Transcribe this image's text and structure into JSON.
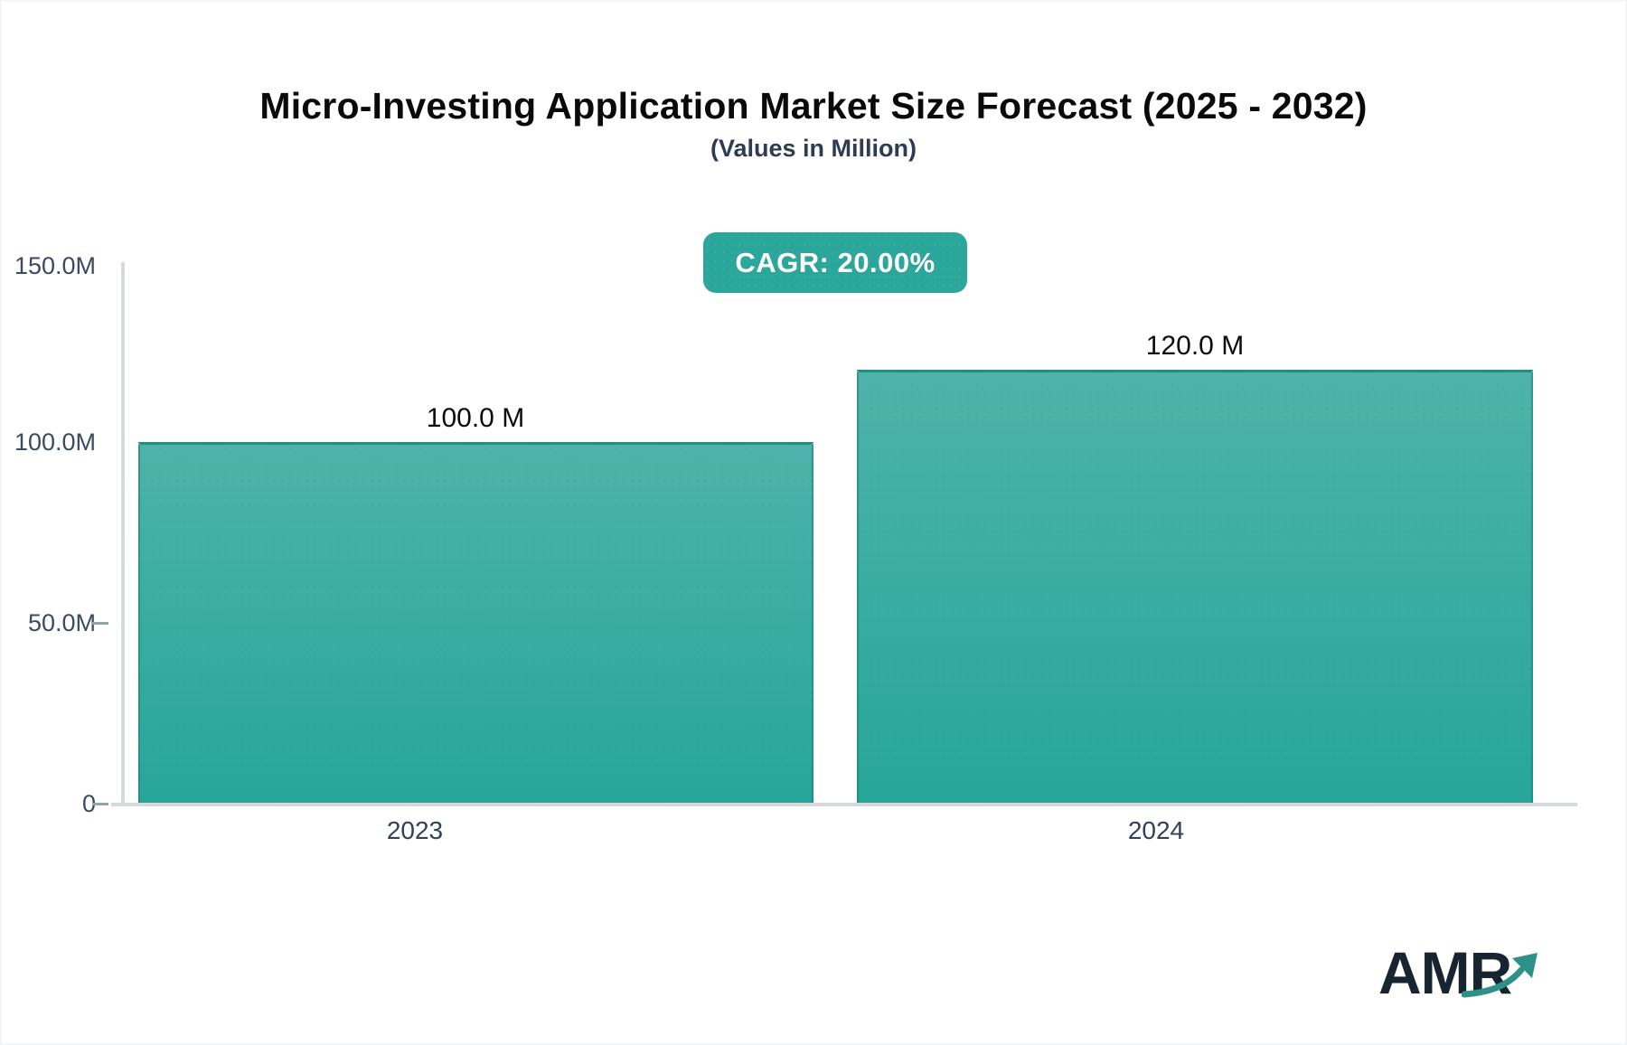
{
  "header": {
    "title": "Micro-Investing Application Market Size Forecast (2025 - 2032)",
    "subtitle": "(Values in Million)",
    "cagr_label": "CAGR: 20.00%"
  },
  "chart_data": {
    "type": "bar",
    "title": "Micro-Investing Application Market Size Forecast (2025 - 2032)",
    "subtitle": "(Values in Million)",
    "unit": "Million",
    "categories": [
      "2023",
      "2024"
    ],
    "values": [
      100.0,
      120.0
    ],
    "value_labels": [
      "100.0 M",
      "120.0 M"
    ],
    "cagr_percent": "20.00%",
    "ylim": [
      0,
      150
    ],
    "ytick_labels": [
      "150.0M",
      "100.0M",
      "50.0M",
      "0"
    ],
    "ytick_values": [
      150,
      100,
      50,
      0
    ],
    "grid": false,
    "legend": false,
    "bar_colors": {
      "top": "#4FB3AA",
      "bottom": "#28A69A",
      "edge": "#1E8E85"
    }
  },
  "colors": {
    "badge_bg": "#2BA69A",
    "badge_text": "#FFFFFF",
    "axis_line": "#D6D9DE",
    "tick_dash": "#93A5AC",
    "title_text": "#0A0A0A",
    "subtitle_text": "#2F3B52",
    "axis_label_text": "#3A4A63",
    "logo_text": "#18242F",
    "logo_arrow": "#2E9188"
  },
  "logo": {
    "text": "AMR",
    "arrow_icon": "growth-arrow-icon"
  }
}
